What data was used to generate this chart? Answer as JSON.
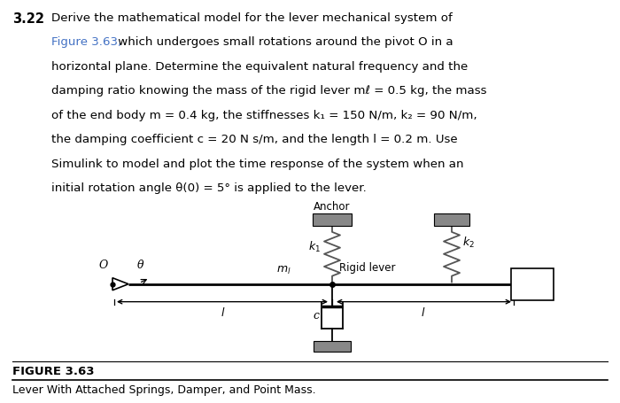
{
  "title_number": "3.22",
  "lines": [
    "Derive the mathematical model for the lever mechanical system of",
    "Figure 3.63,| which undergoes small rotations around the pivot O in a",
    "horizontal plane. Determine the equivalent natural frequency and the",
    "damping ratio knowing the mass of the rigid lever mℓ = 0.5 kg, the mass",
    "of the end body m = 0.4 kg, the stiffnesses k₁ = 150 N/m, k₂ = 90 N/m,",
    "the damping coefficient c = 20 N s/m, and the length l = 0.2 m. Use",
    "Simulink to model and plot the time response of the system when an",
    "initial rotation angle θ(0) = 5° is applied to the lever."
  ],
  "figure_label": "FIGURE 3.63",
  "figure_caption": "Lever With Attached Springs, Damper, and Point Mass.",
  "link_color": "#4472c4",
  "bg_color": "#ffffff",
  "text_color": "#000000",
  "anchor_color": "#888888",
  "line_color": "#333333",
  "spring_color": "#555555"
}
